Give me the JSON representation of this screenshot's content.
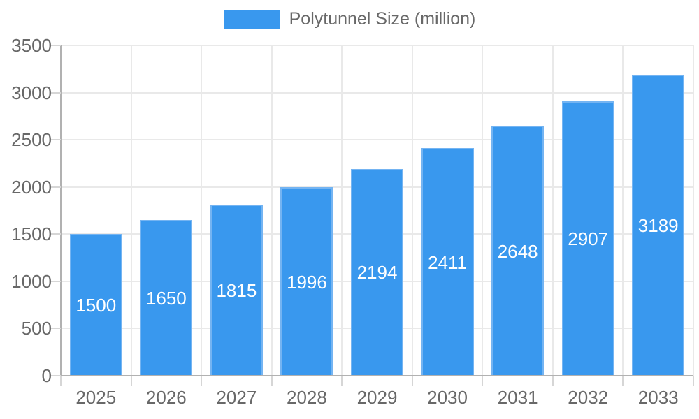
{
  "legend": {
    "label": "Polytunnel Size (million)"
  },
  "chart_data": {
    "type": "bar",
    "title": "",
    "xlabel": "",
    "ylabel": "",
    "categories": [
      "2025",
      "2026",
      "2027",
      "2028",
      "2029",
      "2030",
      "2031",
      "2032",
      "2033"
    ],
    "series": [
      {
        "name": "Polytunnel Size (million)",
        "values": [
          1500,
          1650,
          1815,
          1996,
          2194,
          2411,
          2648,
          2907,
          3189
        ]
      }
    ],
    "ylim": [
      0,
      3500
    ],
    "yticks": [
      0,
      500,
      1000,
      1500,
      2000,
      2500,
      3000,
      3500
    ],
    "grid": true,
    "legend_position": "top",
    "value_labels": "inside-center",
    "colors": {
      "bar_fill": "#3998ee",
      "bar_border": "#74b4f2",
      "grid_line": "#e9e9e9",
      "axis_line": "#b1b1b1",
      "tick_text": "#686868",
      "value_label_text": "#ffffff"
    }
  }
}
